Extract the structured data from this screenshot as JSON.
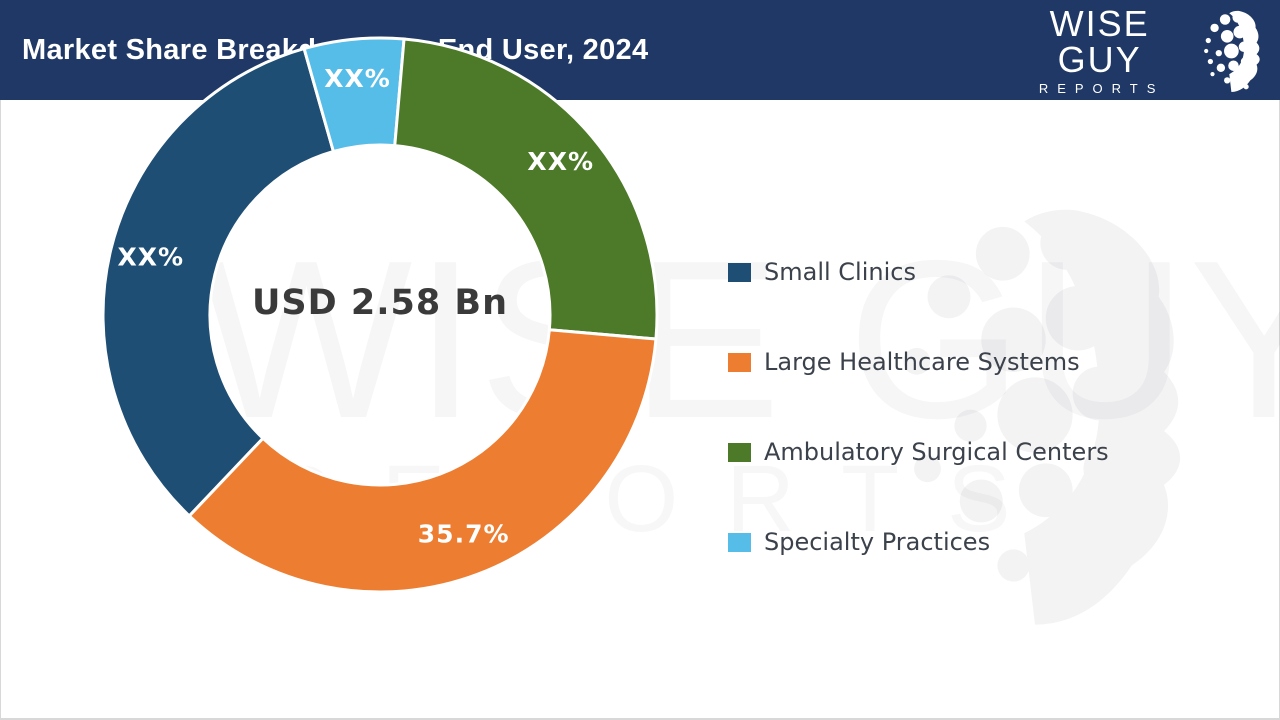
{
  "header": {
    "title": "Market Share Breakdown, By End User, 2024",
    "logo": {
      "line1": "WISE GUY",
      "line2": "REPORTS"
    }
  },
  "legend": {
    "items": [
      {
        "label": "Small Clinics",
        "color": "#1F4E74"
      },
      {
        "label": "Large Healthcare Systems",
        "color": "#ED7D31"
      },
      {
        "label": "Ambulatory Surgical Centers",
        "color": "#4C7A28"
      },
      {
        "label": "Specialty Practices",
        "color": "#56BCE8"
      }
    ]
  },
  "chart_data": {
    "type": "donut",
    "title": "Market Share Breakdown, By End User, 2024",
    "center_label": "USD 2.58 Bn",
    "units": "percent of market share",
    "rotation_deg": 223.5,
    "legend_position": "right",
    "segments": [
      {
        "name": "Small Clinics",
        "value_pct": 33.5,
        "label": "XX%",
        "color": "#1F4E74"
      },
      {
        "name": "Specialty Practices",
        "value_pct": 5.8,
        "label": "XX%",
        "color": "#56BCE8"
      },
      {
        "name": "Ambulatory Surgical Centers",
        "value_pct": 25.0,
        "label": "XX%",
        "color": "#4C7A28"
      },
      {
        "name": "Large Healthcare Systems",
        "value_pct": 35.7,
        "label": "35.7%",
        "color": "#ED7D31"
      }
    ],
    "geometry": {
      "outer_radius": 277,
      "inner_radius": 170,
      "label_radius": 236
    }
  },
  "watermark": {
    "line1": "WISE GUY",
    "line2": "REPORTS"
  },
  "colors": {
    "header_bg": "#1F3865",
    "card_border": "#D8D8D8",
    "center_text": "#3A3A3A",
    "legend_text": "#3C424B",
    "segment_label_text": "#FFFFFF"
  }
}
